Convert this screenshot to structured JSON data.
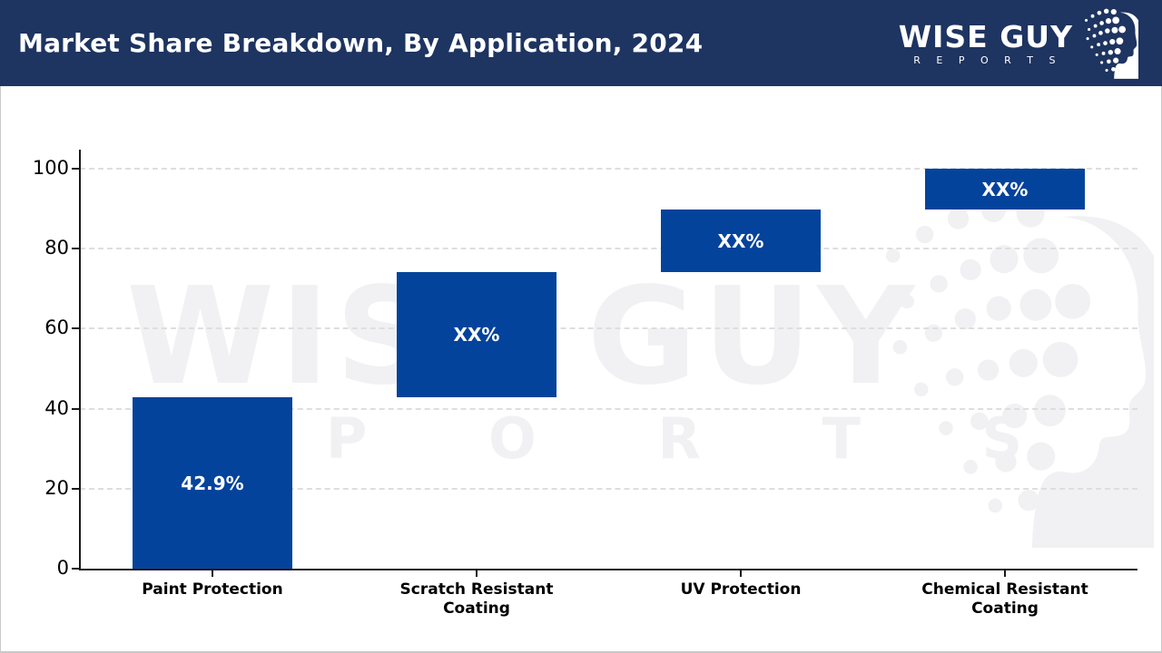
{
  "header": {
    "title": "Market Share Breakdown, By Application, 2024",
    "logo": {
      "line1": "WISE GUY",
      "line2": "R E P O R T S",
      "icon": "dotted-face-profile"
    }
  },
  "watermark": {
    "line1": "WISE GUY",
    "line2": "P O R T S",
    "icon": "dotted-face-profile"
  },
  "colors": {
    "header_bg": "#1e3461",
    "bar_blue": "#04439c",
    "gridline": "#dedede",
    "watermark": "#f1f1f3",
    "frame_border": "#c9c9c9"
  },
  "chart_data": {
    "type": "bar",
    "subtype": "waterfall",
    "title": "Market Share Breakdown, By Application, 2024",
    "xlabel": "",
    "ylabel": "",
    "categories": [
      "Paint Protection",
      "Scratch Resistant\nCoating",
      "UV Protection",
      "Chemical Resistant\nCoating"
    ],
    "bars": [
      {
        "category": "Paint Protection",
        "label": "42.9%",
        "start": 0,
        "end": 42.9
      },
      {
        "category": "Scratch Resistant Coating",
        "label": "XX%",
        "start": 42.9,
        "end": 74.2
      },
      {
        "category": "UV Protection",
        "label": "XX%",
        "start": 74.2,
        "end": 89.8
      },
      {
        "category": "Chemical Resistant Coating",
        "label": "XX%",
        "start": 89.8,
        "end": 100
      }
    ],
    "yticks": [
      0,
      20,
      40,
      60,
      80,
      100
    ],
    "ylim": [
      0,
      105
    ],
    "grid": "horizontal dashed",
    "legend": "none",
    "bar_value_labels_inside": true
  }
}
